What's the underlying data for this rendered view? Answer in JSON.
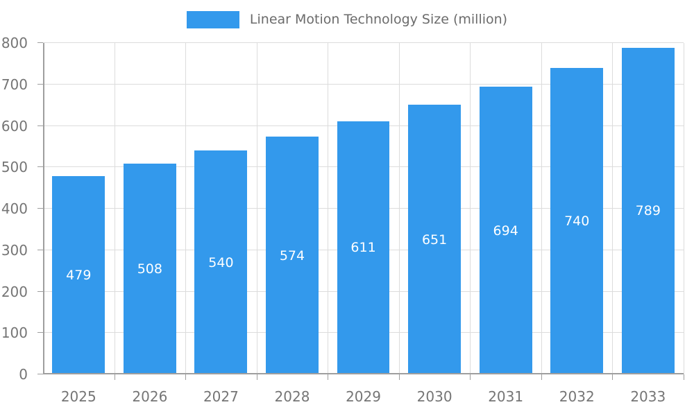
{
  "chart_data": {
    "type": "bar",
    "title": "Linear Motion Technology Size (million)",
    "categories": [
      "2025",
      "2026",
      "2027",
      "2028",
      "2029",
      "2030",
      "2031",
      "2032",
      "2033"
    ],
    "values": [
      479,
      508,
      540,
      574,
      611,
      651,
      694,
      740,
      789
    ],
    "xlabel": "",
    "ylabel": "",
    "ylim": [
      0,
      800
    ],
    "ytick_step": 100,
    "yticks": [
      0,
      100,
      200,
      300,
      400,
      500,
      600,
      700,
      800
    ],
    "grid": "horizontal and vertical gridlines on",
    "legend_position": "top-center",
    "value_labels": "white, centered inside bars",
    "colors": {
      "bar": "#3399ec",
      "grid": "#dcdcdc",
      "axis_line": "#9e9e9e",
      "axis_text": "#757575",
      "legend_text": "#6b6b6b",
      "value_label": "#ffffff",
      "background": "#ffffff"
    }
  }
}
